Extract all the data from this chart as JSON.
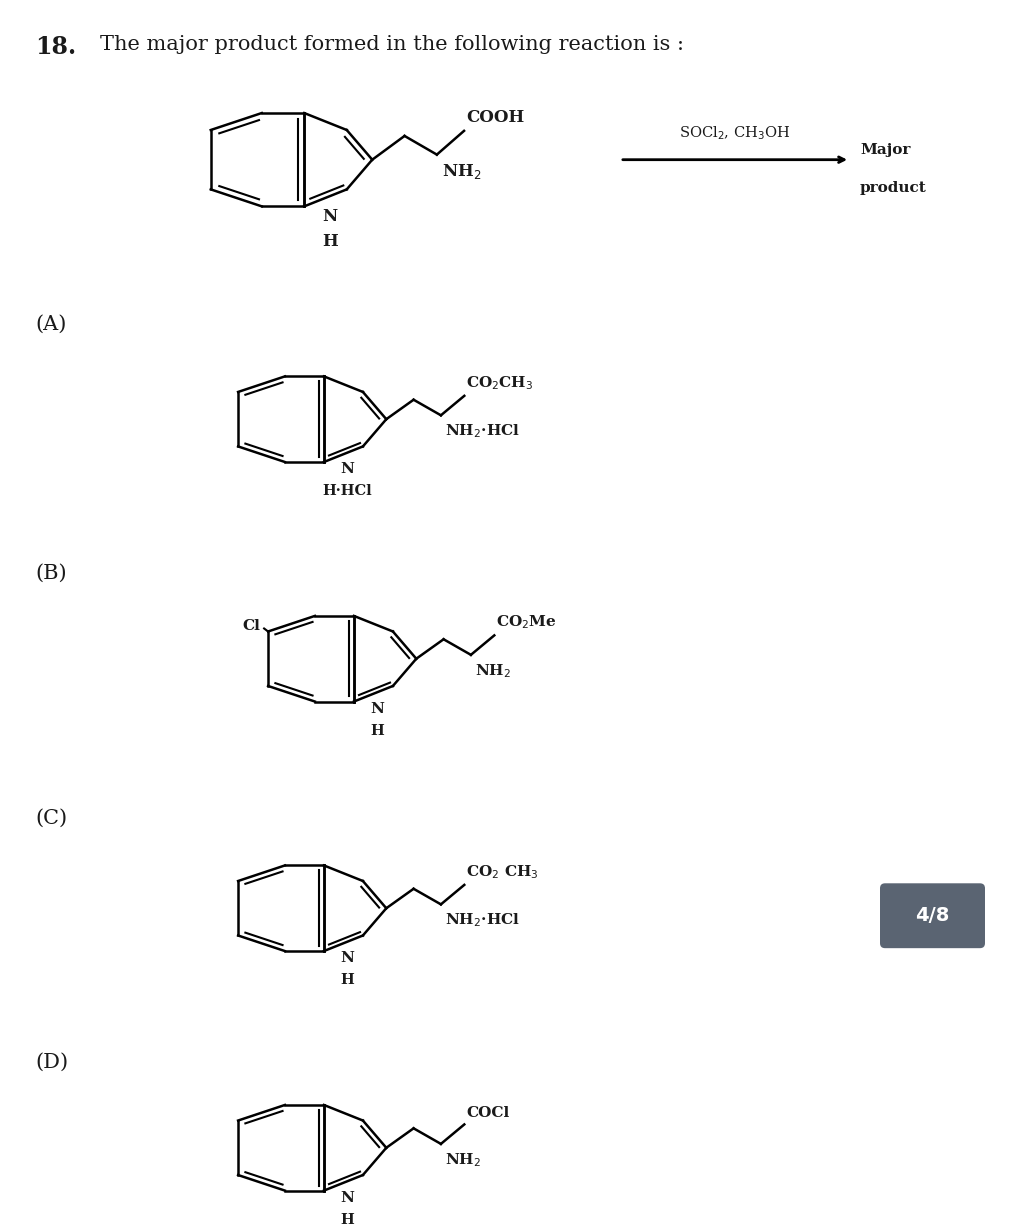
{
  "title_number": "18.",
  "title_text": "The major product formed in the following reaction is :",
  "background_color": "#ffffff",
  "text_color": "#1a1a1a",
  "badge_color": "#5a6472",
  "badge_text": "4/8",
  "badge_text_color": "#ffffff",
  "options": [
    "(A)",
    "(B)",
    "(C)",
    "(D)"
  ],
  "reagent_text": "SOCl₂, CH₃OH",
  "arrow_text": "Major\nproduct",
  "reaction_substrate_top": "COOH",
  "reaction_substrate_bottom": "NH₂",
  "option_A_top": "CO₂CH₃",
  "option_A_bottom1": "NH₂·HCl",
  "option_A_bottom2": "H·HCl",
  "option_B_top": "CO₂Me",
  "option_B_bottom": "NH₂",
  "option_B_cl": "Cl",
  "option_C_top": "CO₂ CH₃",
  "option_C_bottom": "NH₂·HCl",
  "option_D_top": "COCl",
  "option_D_bottom": "NH₂"
}
